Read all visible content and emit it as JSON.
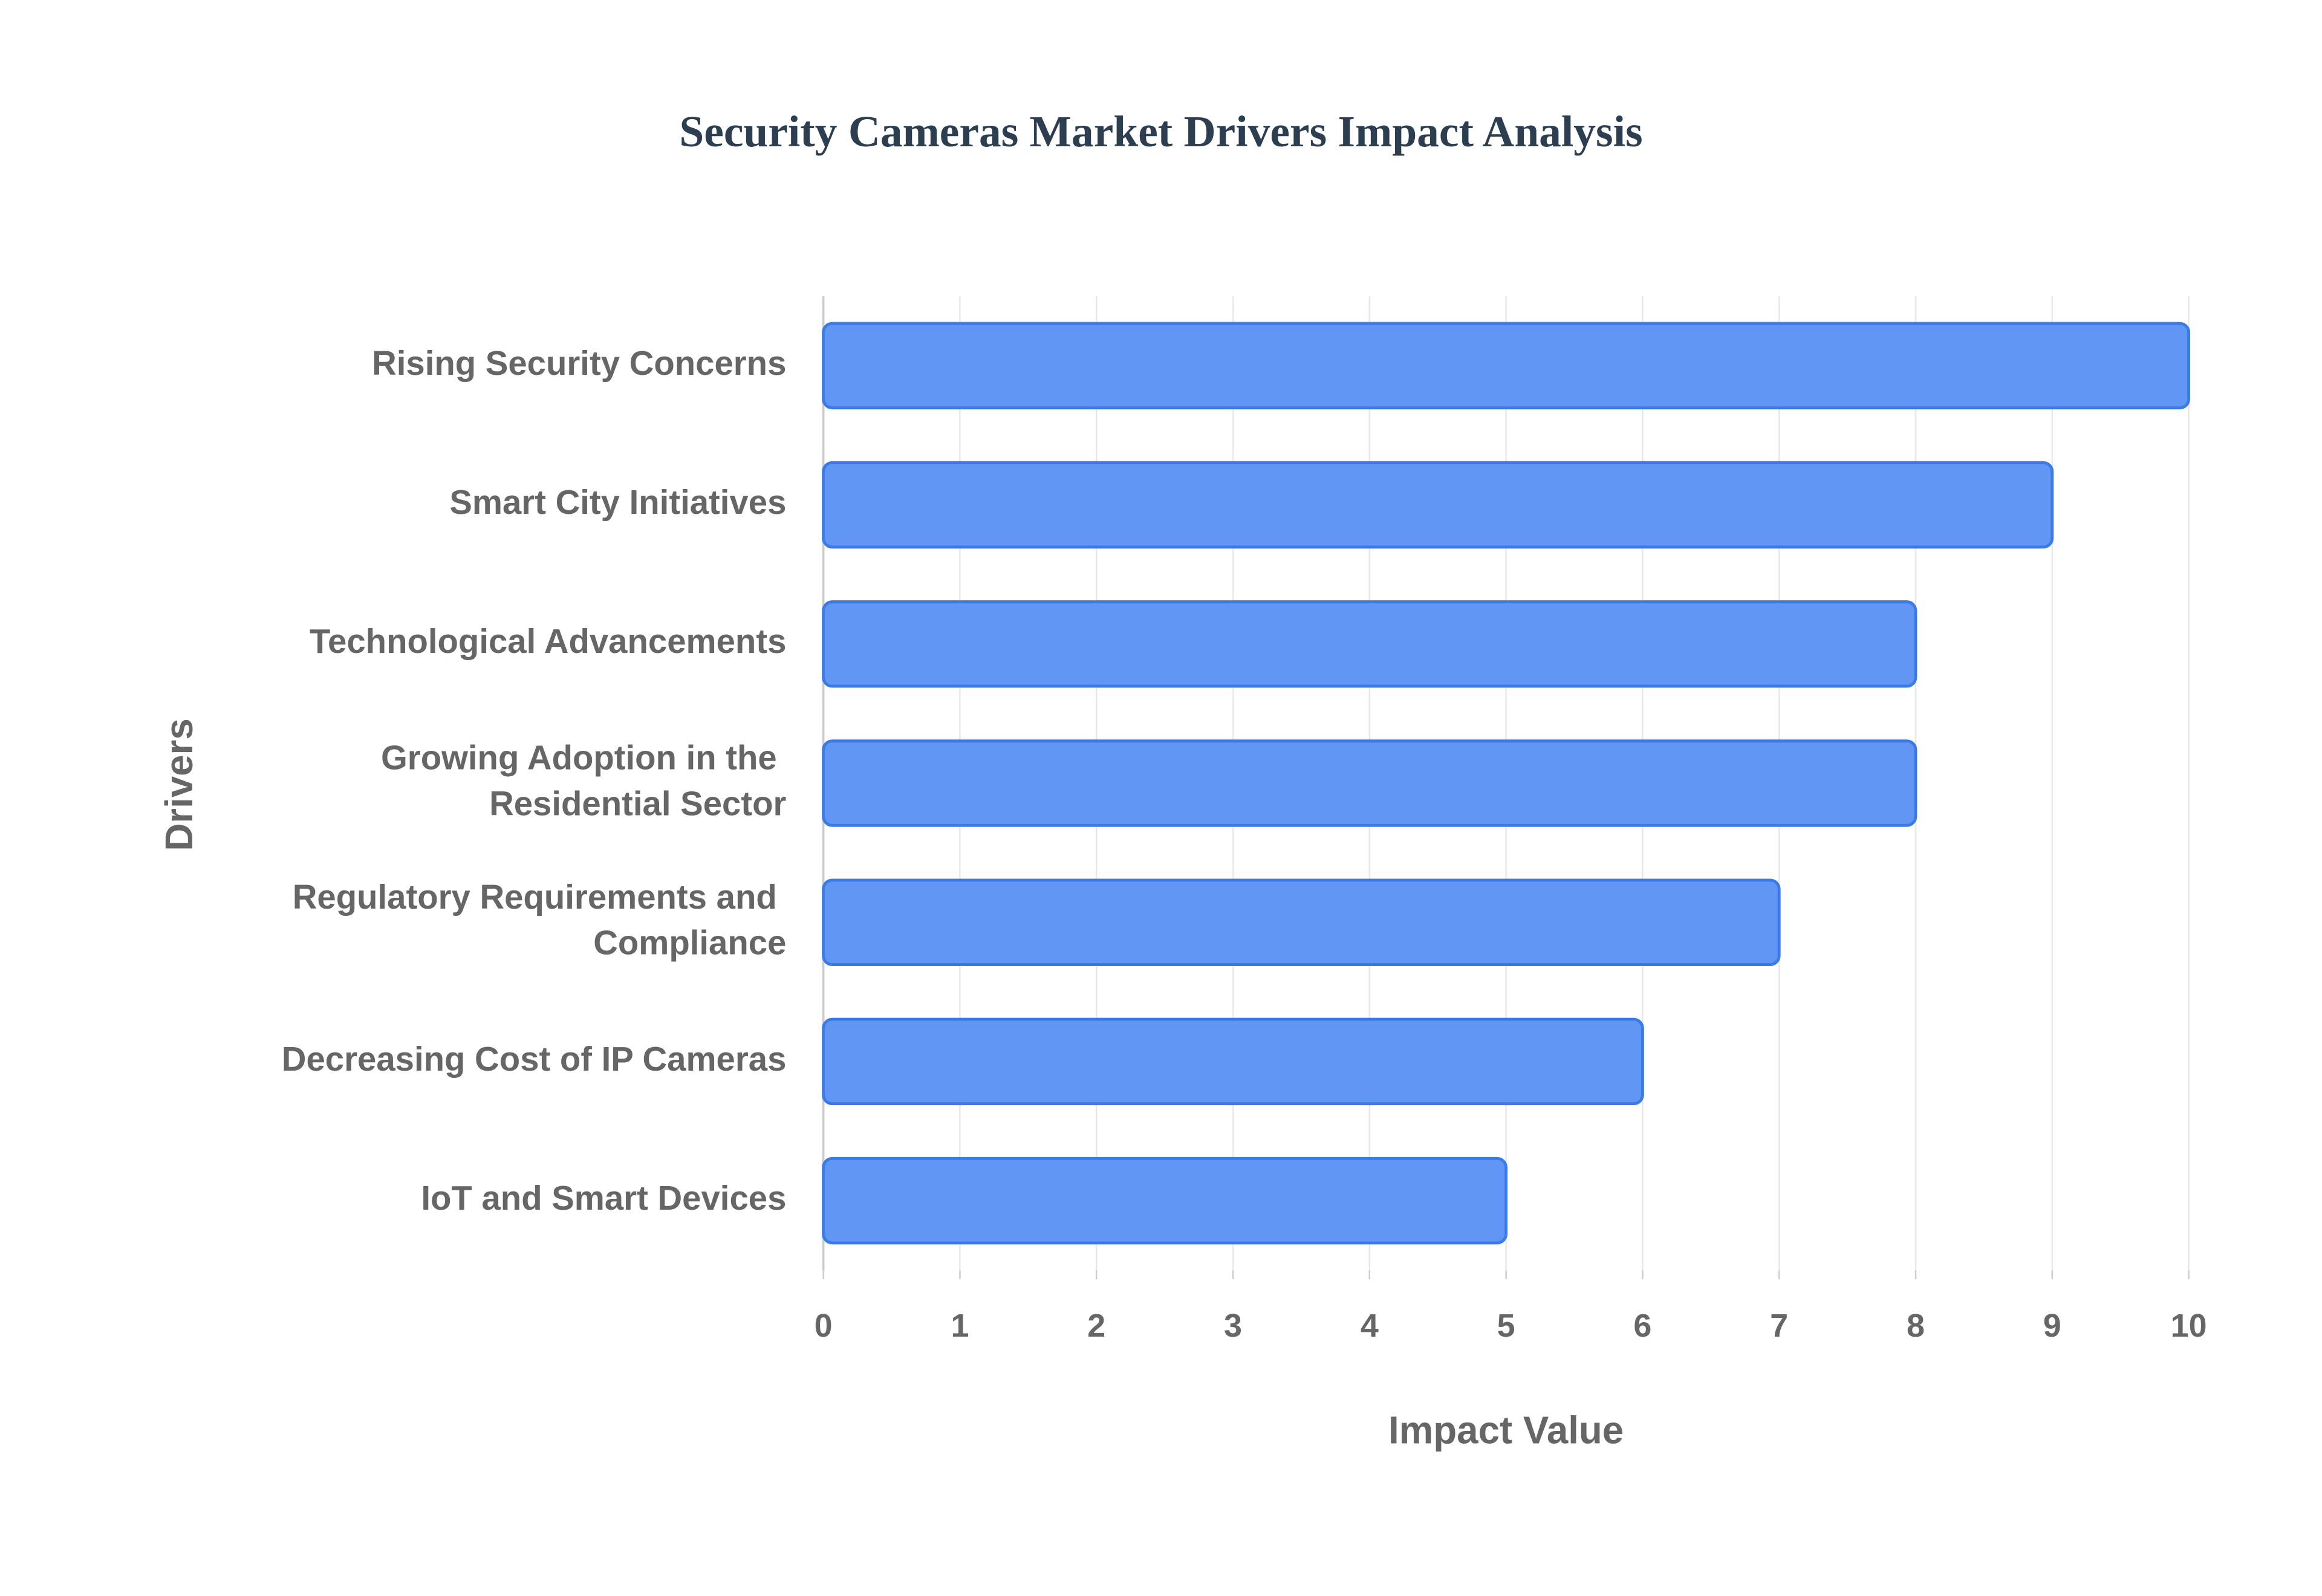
{
  "chart_data": {
    "type": "bar",
    "orientation": "horizontal",
    "title": "Security Cameras Market Drivers Impact Analysis",
    "x_label": "Impact Value",
    "y_label": "Drivers",
    "categories": [
      "Rising Security Concerns",
      "Smart City Initiatives",
      "Technological Advancements",
      "Growing Adoption in the Residential Sector",
      "Regulatory Requirements and Compliance",
      "Decreasing Cost of IP Cameras",
      "IoT and Smart Devices"
    ],
    "values": [
      10,
      9,
      8,
      8,
      7,
      6,
      5
    ],
    "color": "#6196f4",
    "edge_color": "#3b7be6",
    "xlim": [
      0,
      10
    ],
    "xticks": [
      0,
      1,
      2,
      3,
      4,
      5,
      6,
      7,
      8,
      9,
      10
    ],
    "grid": true
  }
}
